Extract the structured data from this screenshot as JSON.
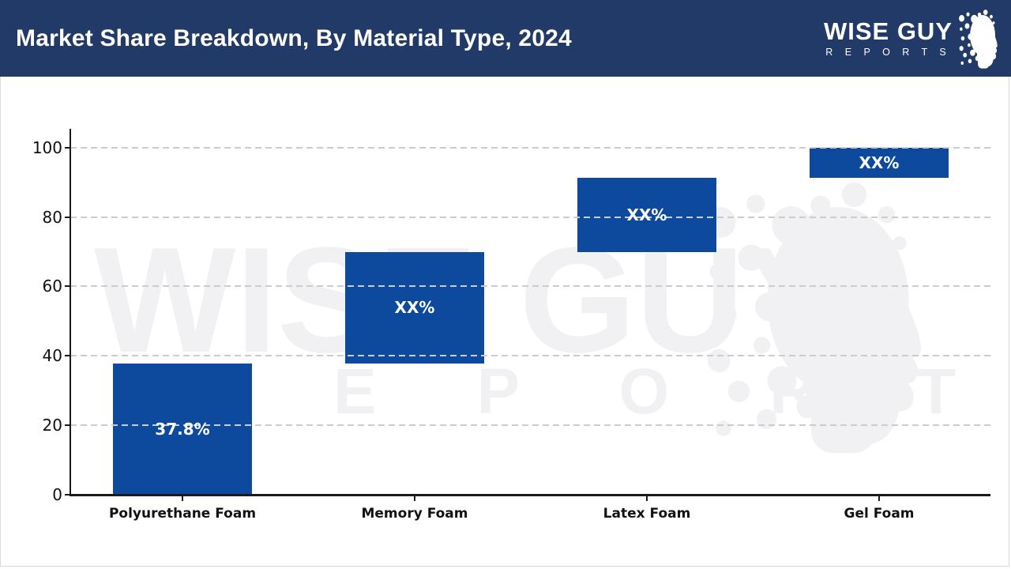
{
  "header": {
    "title": "Market Share Breakdown, By Material Type, 2024",
    "logo": {
      "name": "WISE GUY",
      "sub": "R E P O R T S"
    }
  },
  "watermark": {
    "name": "WISE GUY",
    "sub": "R E P O R T S"
  },
  "colors": {
    "header_bg": "#223A67",
    "bar": "#0D4A9E",
    "gridline": "#cccccc",
    "axis": "#1a1a1a",
    "watermark": "#f1f1f3",
    "bar_label": "#ffffff"
  },
  "chart_data": {
    "type": "bar",
    "subtype": "waterfall",
    "title": "Market Share Breakdown, By Material Type, 2024",
    "categories": [
      "Polyurethane Foam",
      "Memory Foam",
      "Latex Foam",
      "Gel Foam"
    ],
    "segments": [
      {
        "category": "Polyurethane Foam",
        "start": 0,
        "end": 37.8,
        "label": "37.8%"
      },
      {
        "category": "Memory Foam",
        "start": 37.8,
        "end": 69.9,
        "label": "XX%"
      },
      {
        "category": "Latex Foam",
        "start": 69.9,
        "end": 91.3,
        "label": "XX%"
      },
      {
        "category": "Gel Foam",
        "start": 91.3,
        "end": 100,
        "label": "XX%"
      }
    ],
    "yticks": [
      0,
      20,
      40,
      60,
      80,
      100
    ],
    "ylim": [
      0,
      105
    ],
    "xlabel": "",
    "ylabel": "",
    "grid": "horizontal-dashed",
    "legend": "none"
  }
}
